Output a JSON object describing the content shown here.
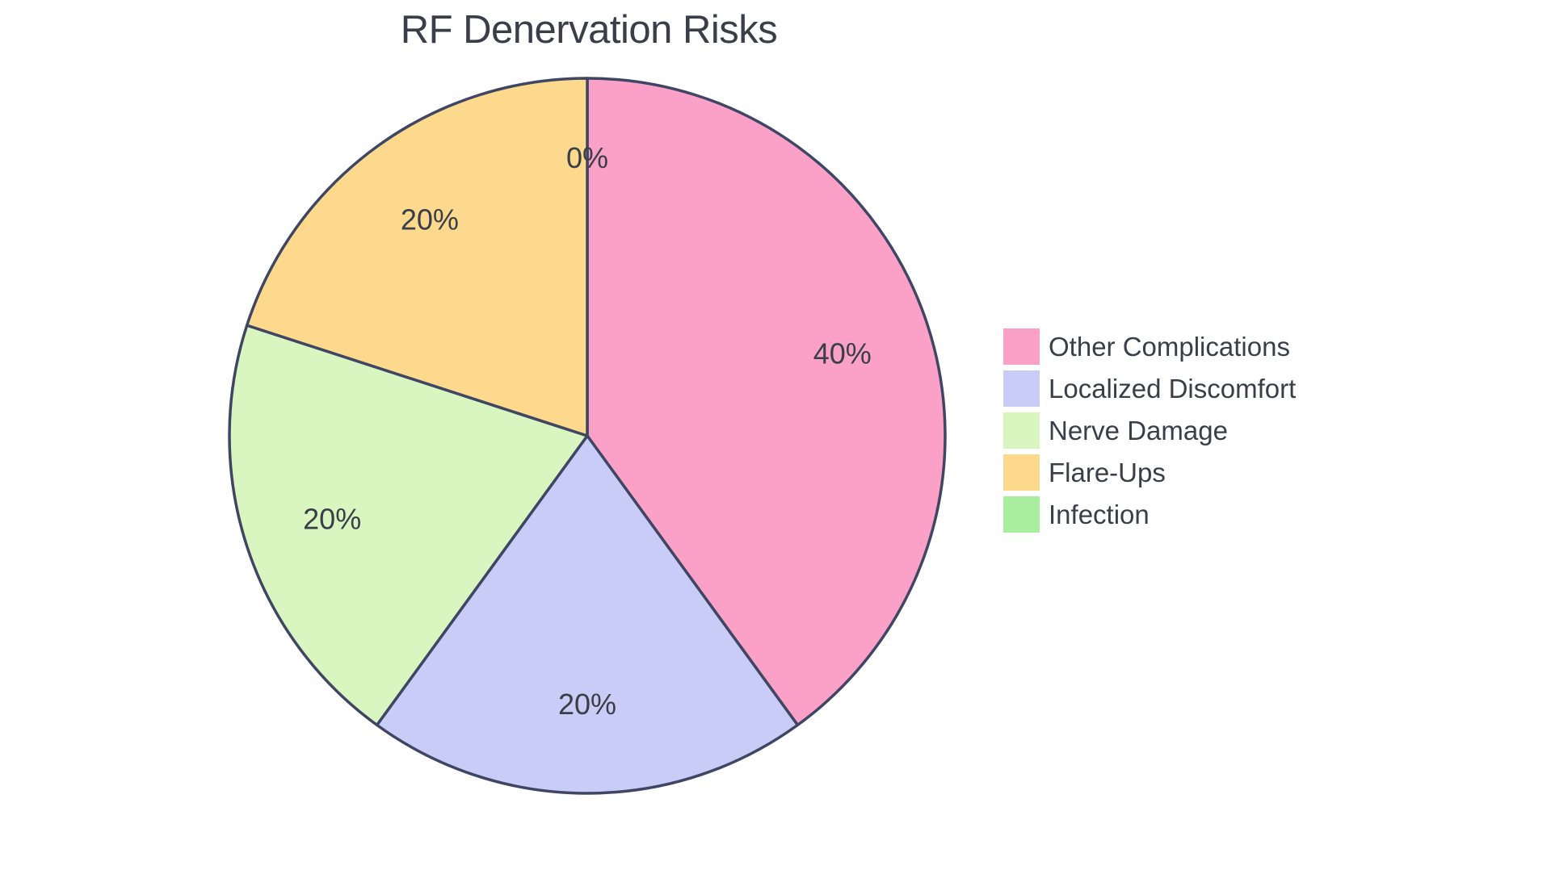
{
  "chart_data": {
    "type": "pie",
    "title": "RF Denervation Risks",
    "slices": [
      {
        "label": "Other Complications",
        "value": 40,
        "pct_label": "40%",
        "color": "#FBA1C7"
      },
      {
        "label": "Localized Discomfort",
        "value": 20,
        "pct_label": "20%",
        "color": "#C9CCF6"
      },
      {
        "label": "Nerve Damage",
        "value": 20,
        "pct_label": "20%",
        "color": "#D9F5C0"
      },
      {
        "label": "Flare-Ups",
        "value": 20,
        "pct_label": "20%",
        "color": "#FCD98D"
      },
      {
        "label": "Infection",
        "value": 0,
        "pct_label": "0%",
        "color": "#A9EE9E"
      }
    ],
    "start_position": "12-oclock",
    "direction": "clockwise",
    "outline_color": "#3F4663",
    "label_color": "#3A3E48",
    "legend_position": "right",
    "grid": false
  }
}
